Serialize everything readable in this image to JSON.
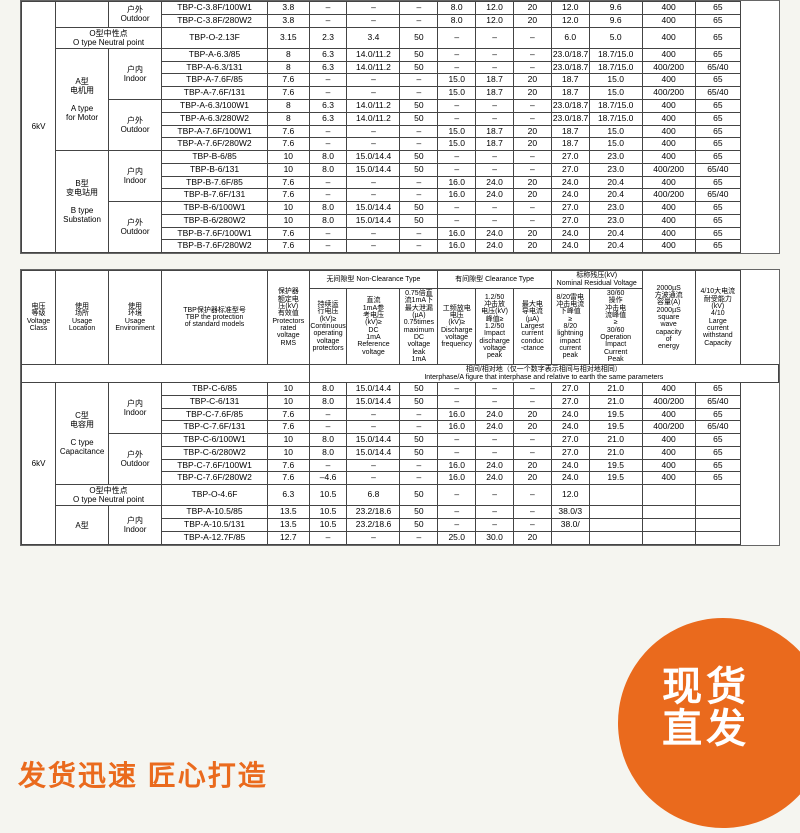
{
  "colors": {
    "accent": "#ea6a1d",
    "border": "#444444",
    "paper": "#ffffff",
    "page_bg": "#f5f5f0"
  },
  "caption": "发货迅速  匠心打造",
  "badge": {
    "line1": "现货",
    "line2": "直发"
  },
  "table1": {
    "top_group": {
      "vclass": "6kV",
      "sections": [
        {
          "usage": "",
          "blocks": [
            {
              "env": "户外\nOutdoor",
              "rows": [
                [
                  "TBP-C-3.8F/100W1",
                  "3.8",
                  "–",
                  "–",
                  "–",
                  "8.0",
                  "12.0",
                  "20",
                  "12.0",
                  "9.6",
                  "400",
                  "65"
                ],
                [
                  "TBP-C-3.8F/280W2",
                  "3.8",
                  "–",
                  "–",
                  "–",
                  "8.0",
                  "12.0",
                  "20",
                  "12.0",
                  "9.6",
                  "400",
                  "65"
                ]
              ]
            },
            {
              "env": "O型中性点\nO type Neutral point",
              "span_usage": true,
              "rows": [
                [
                  "TBP-O-2.13F",
                  "3.15",
                  "2.3",
                  "3.4",
                  "50",
                  "–",
                  "–",
                  "–",
                  "6.0",
                  "5.0",
                  "400",
                  "65"
                ]
              ]
            }
          ]
        },
        {
          "usage": "A型\n电机用\n\nA type\nfor Motor",
          "blocks": [
            {
              "env": "户内\nIndoor",
              "rows": [
                [
                  "TBP-A-6.3/85",
                  "8",
                  "6.3",
                  "14.0/11.2",
                  "50",
                  "–",
                  "–",
                  "–",
                  "23.0/18.7",
                  "18.7/15.0",
                  "400",
                  "65"
                ],
                [
                  "TBP-A-6.3/131",
                  "8",
                  "6.3",
                  "14.0/11.2",
                  "50",
                  "–",
                  "–",
                  "–",
                  "23.0/18.7",
                  "18.7/15.0",
                  "400/200",
                  "65/40"
                ],
                [
                  "TBP-A-7.6F/85",
                  "7.6",
                  "–",
                  "–",
                  "–",
                  "15.0",
                  "18.7",
                  "20",
                  "18.7",
                  "15.0",
                  "400",
                  "65"
                ],
                [
                  "TBP-A-7.6F/131",
                  "7.6",
                  "–",
                  "–",
                  "–",
                  "15.0",
                  "18.7",
                  "20",
                  "18.7",
                  "15.0",
                  "400/200",
                  "65/40"
                ]
              ]
            },
            {
              "env": "户外\nOutdoor",
              "rows": [
                [
                  "TBP-A-6.3/100W1",
                  "8",
                  "6.3",
                  "14.0/11.2",
                  "50",
                  "–",
                  "–",
                  "–",
                  "23.0/18.7",
                  "18.7/15.0",
                  "400",
                  "65"
                ],
                [
                  "TBP-A-6.3/280W2",
                  "8",
                  "6.3",
                  "14.0/11.2",
                  "50",
                  "–",
                  "–",
                  "–",
                  "23.0/18.7",
                  "18.7/15.0",
                  "400",
                  "65"
                ],
                [
                  "TBP-A-7.6F/100W1",
                  "7.6",
                  "–",
                  "–",
                  "–",
                  "15.0",
                  "18.7",
                  "20",
                  "18.7",
                  "15.0",
                  "400",
                  "65"
                ],
                [
                  "TBP-A-7.6F/280W2",
                  "7.6",
                  "–",
                  "–",
                  "–",
                  "15.0",
                  "18.7",
                  "20",
                  "18.7",
                  "15.0",
                  "400",
                  "65"
                ]
              ]
            }
          ]
        },
        {
          "usage": "B型\n变电站用\n\nB type\nSubstation",
          "blocks": [
            {
              "env": "户内\nIndoor",
              "rows": [
                [
                  "TBP-B-6/85",
                  "10",
                  "8.0",
                  "15.0/14.4",
                  "50",
                  "–",
                  "–",
                  "–",
                  "27.0",
                  "23.0",
                  "400",
                  "65"
                ],
                [
                  "TBP-B-6/131",
                  "10",
                  "8.0",
                  "15.0/14.4",
                  "50",
                  "–",
                  "–",
                  "–",
                  "27.0",
                  "23.0",
                  "400/200",
                  "65/40"
                ],
                [
                  "TBP-B-7.6F/85",
                  "7.6",
                  "–",
                  "–",
                  "–",
                  "16.0",
                  "24.0",
                  "20",
                  "24.0",
                  "20.4",
                  "400",
                  "65"
                ],
                [
                  "TBP-B-7.6F/131",
                  "7.6",
                  "–",
                  "–",
                  "–",
                  "16.0",
                  "24.0",
                  "20",
                  "24.0",
                  "20.4",
                  "400/200",
                  "65/40"
                ]
              ]
            },
            {
              "env": "户外\nOutdoor",
              "rows": [
                [
                  "TBP-B-6/100W1",
                  "10",
                  "8.0",
                  "15.0/14.4",
                  "50",
                  "–",
                  "–",
                  "–",
                  "27.0",
                  "23.0",
                  "400",
                  "65"
                ],
                [
                  "TBP-B-6/280W2",
                  "10",
                  "8.0",
                  "15.0/14.4",
                  "50",
                  "–",
                  "–",
                  "–",
                  "27.0",
                  "23.0",
                  "400",
                  "65"
                ],
                [
                  "TBP-B-7.6F/100W1",
                  "7.6",
                  "–",
                  "–",
                  "–",
                  "16.0",
                  "24.0",
                  "20",
                  "24.0",
                  "20.4",
                  "400",
                  "65"
                ],
                [
                  "TBP-B-7.6F/280W2",
                  "7.6",
                  "–",
                  "–",
                  "–",
                  "16.0",
                  "24.0",
                  "20",
                  "24.0",
                  "20.4",
                  "400",
                  "65"
                ]
              ]
            }
          ]
        }
      ]
    }
  },
  "table2": {
    "header": {
      "r1": [
        "电压\n等级\nVoltage\nClass",
        "使用\n场所\nUsage\nLocation",
        "使用\n环境\nUsage\nEnvironment",
        "TBP保护器标准型号\nTBP the protection\nof standard models",
        "保护器\n额定电\n压(kV)\n有效值\nProtectors\nrated\nvoltage\nRMS"
      ],
      "nc_label": "无间隙型 Non-Clearance Type",
      "nc_cols": [
        "持续运\n行电压\n(kV)≥\nContinuous\noperating\nvoltage\nprotectors",
        "直流\n1mA参\n考电压\n(kV)≥\nDC\n1mA\nReference\nvoltage",
        "0.75倍直\n流1mA下\n最大泄漏\n(µA)\n0.75times\nmaximum\nDC\nvoltage\nleak\n1mA"
      ],
      "c_label": "有间隙型 Clearance Type",
      "c_cols": [
        "工频放电\n电压\n(kV)≥\nDischarge\nvoltage\nfrequency",
        "1.2/50\n冲击放\n电压(kV)\n峰值≥\n1.2/50\nImpact\ndischarge\nvoltage\npeak",
        "最大电\n导电流\n(µA)\nLargest\ncurrent\nconduc\n-ctance"
      ],
      "rv_label": "标称残压(kV)\nNominal Residual Voltage",
      "rv_cols": [
        "8/20雷电\n冲击电流\n下峰值\n≥\n8/20\nlightning\nimpact\ncurrent\npeak",
        "30/60\n操作\n冲击电\n流峰值\n≥\n30/60\nOperation\nImpact\nCurrent\nPeak"
      ],
      "tail": [
        "2000µS\n方波通流\n容量(A)\n2000µS\nsquare\nwave\ncapacity\nof\nenergy",
        "4/10大电流\n耐受能力\n(kV)\n4/10\nLarge\ncurrent\nwithstand\nCapacity"
      ],
      "note": "相间/相对地（仅一个数字表示相间与相对地相同）\nInterphase/A figure that interphase and relative to earth the same parameters"
    },
    "body": {
      "vclass": "6kV",
      "sections": [
        {
          "usage": "C型\n电容用\n\nC type\nCapacitance",
          "blocks": [
            {
              "env": "户内\nIndoor",
              "rows": [
                [
                  "TBP-C-6/85",
                  "10",
                  "8.0",
                  "15.0/14.4",
                  "50",
                  "–",
                  "–",
                  "–",
                  "27.0",
                  "21.0",
                  "400",
                  "65"
                ],
                [
                  "TBP-C-6/131",
                  "10",
                  "8.0",
                  "15.0/14.4",
                  "50",
                  "–",
                  "–",
                  "–",
                  "27.0",
                  "21.0",
                  "400/200",
                  "65/40"
                ],
                [
                  "TBP-C-7.6F/85",
                  "7.6",
                  "–",
                  "–",
                  "–",
                  "16.0",
                  "24.0",
                  "20",
                  "24.0",
                  "19.5",
                  "400",
                  "65"
                ],
                [
                  "TBP-C-7.6F/131",
                  "7.6",
                  "–",
                  "–",
                  "–",
                  "16.0",
                  "24.0",
                  "20",
                  "24.0",
                  "19.5",
                  "400/200",
                  "65/40"
                ]
              ]
            },
            {
              "env": "户外\nOutdoor",
              "rows": [
                [
                  "TBP-C-6/100W1",
                  "10",
                  "8.0",
                  "15.0/14.4",
                  "50",
                  "–",
                  "–",
                  "–",
                  "27.0",
                  "21.0",
                  "400",
                  "65"
                ],
                [
                  "TBP-C-6/280W2",
                  "10",
                  "8.0",
                  "15.0/14.4",
                  "50",
                  "–",
                  "–",
                  "–",
                  "27.0",
                  "21.0",
                  "400",
                  "65"
                ],
                [
                  "TBP-C-7.6F/100W1",
                  "7.6",
                  "–",
                  "–",
                  "–",
                  "16.0",
                  "24.0",
                  "20",
                  "24.0",
                  "19.5",
                  "400",
                  "65"
                ],
                [
                  "TBP-C-7.6F/280W2",
                  "7.6",
                  "–4.6",
                  "–",
                  "–",
                  "16.0",
                  "24.0",
                  "20",
                  "24.0",
                  "19.5",
                  "400",
                  "65"
                ]
              ]
            }
          ]
        },
        {
          "usage_neutral": "O型中性点\nO type Neutral point",
          "rows": [
            [
              "TBP-O-4.6F",
              "6.3",
              "10.5",
              "6.8",
              "50",
              "–",
              "–",
              "–",
              "12.0",
              "",
              "",
              ""
            ]
          ]
        },
        {
          "usage": "A型",
          "blocks": [
            {
              "env": "户内\nIndoor",
              "rows": [
                [
                  "TBP-A-10.5/85",
                  "13.5",
                  "10.5",
                  "23.2/18.6",
                  "50",
                  "–",
                  "–",
                  "–",
                  "38.0/3",
                  "",
                  "",
                  ""
                ],
                [
                  "TBP-A-10.5/131",
                  "13.5",
                  "10.5",
                  "23.2/18.6",
                  "50",
                  "–",
                  "–",
                  "–",
                  "38.0/",
                  "",
                  "",
                  ""
                ],
                [
                  "TBP-A-12.7F/85",
                  "12.7",
                  "–",
                  "–",
                  "–",
                  "25.0",
                  "30.0",
                  "20",
                  "",
                  "",
                  "",
                  ""
                ]
              ]
            }
          ]
        }
      ]
    }
  }
}
